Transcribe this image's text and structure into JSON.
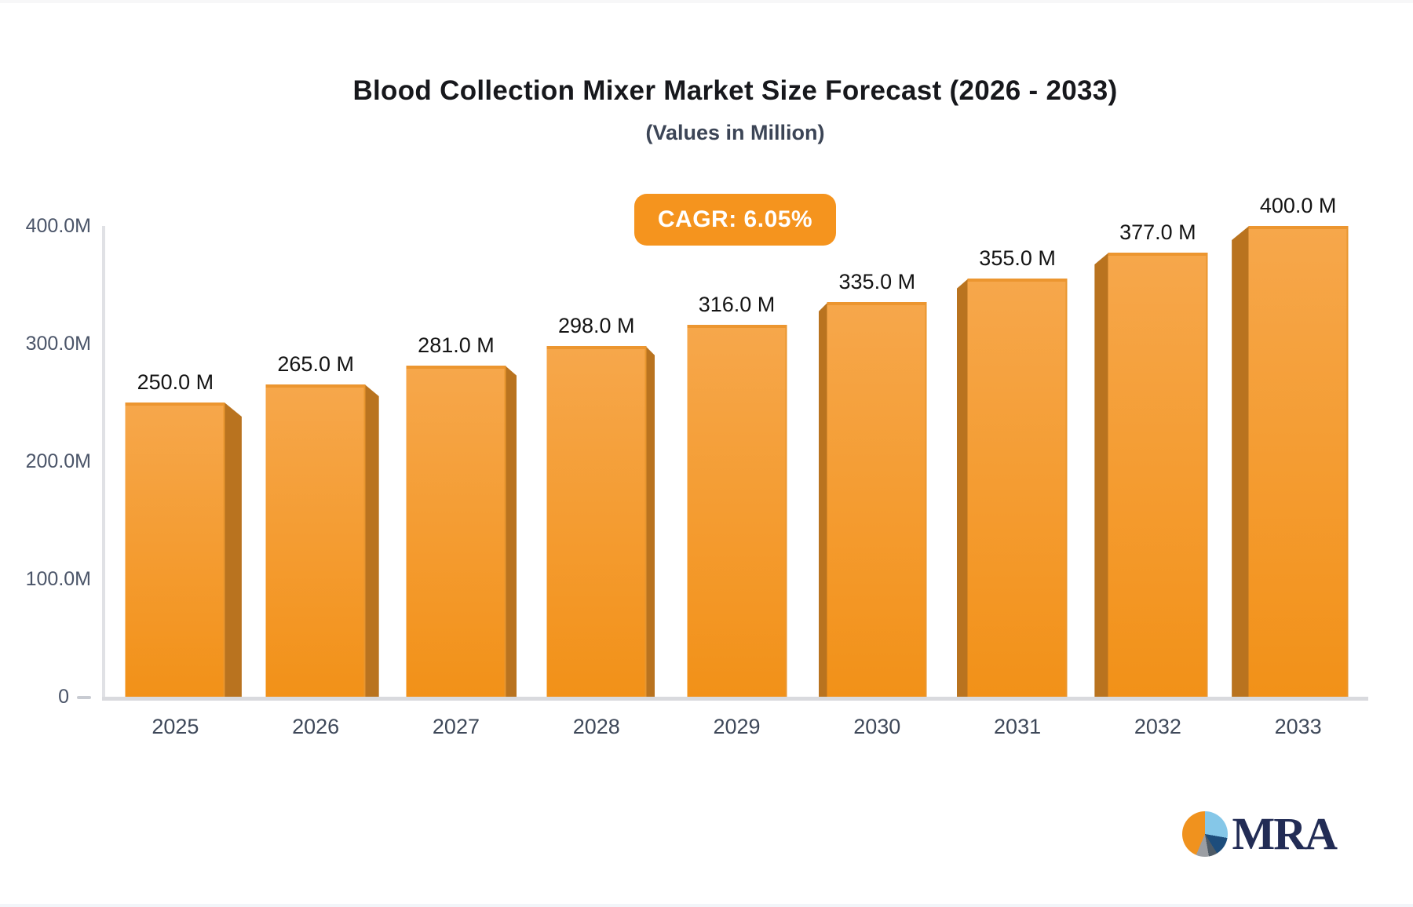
{
  "chart_data": {
    "type": "bar",
    "title": "Blood Collection Mixer Market Size Forecast (2026 - 2033)",
    "subtitle": "(Values in Million)",
    "cagr_label": "CAGR: 6.05%",
    "categories": [
      "2025",
      "2026",
      "2027",
      "2028",
      "2029",
      "2030",
      "2031",
      "2032",
      "2033"
    ],
    "values": [
      250,
      265,
      281,
      298,
      316,
      335,
      355,
      377,
      400
    ],
    "bar_labels": [
      "250.0 M",
      "265.0 M",
      "281.0 M",
      "298.0 M",
      "316.0 M",
      "335.0 M",
      "355.0 M",
      "377.0 M",
      "400.0 M"
    ],
    "xlabel": "",
    "ylabel": "",
    "ylim": [
      0,
      400
    ],
    "ytick_values": [
      0,
      100,
      200,
      300,
      400
    ],
    "ytick_labels": [
      "0",
      "100.0M",
      "200.0M",
      "300.0M",
      "400.0M"
    ],
    "grid": false,
    "legend": false,
    "colors": {
      "bar_front_top": "#f6a74b",
      "bar_front_bottom": "#f29118",
      "bar_lid": "#ec9630",
      "bar_side": "#b9731f",
      "badge_bg": "#f5941e",
      "badge_text": "#ffffff",
      "axis": "#d9dade",
      "tick_label": "#4a5468",
      "value_label": "#141414",
      "title": "#17181c",
      "subtitle": "#3c4556"
    }
  },
  "logo": {
    "text": "MRA",
    "pie_colors": [
      "#f0921e",
      "#85c7e8",
      "#1d4d7c",
      "#9b9ea3"
    ]
  }
}
